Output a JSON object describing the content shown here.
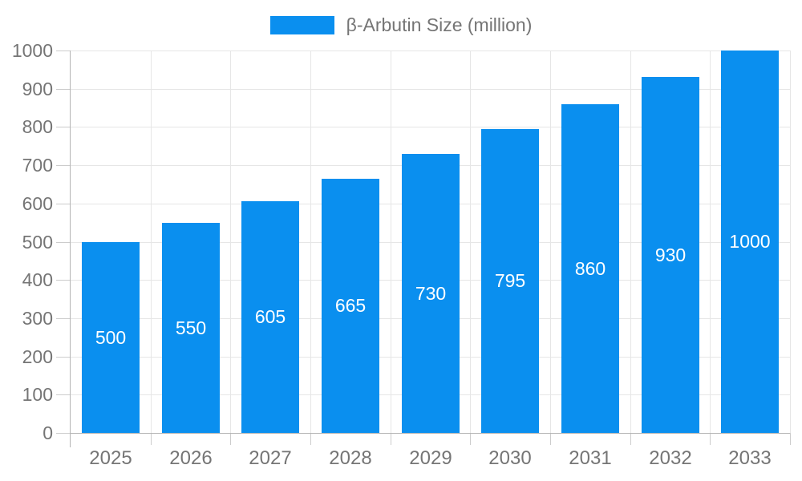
{
  "legend": {
    "label": "β-Arbutin Size (million)"
  },
  "chart_data": {
    "type": "bar",
    "title": "",
    "series_name": "β-Arbutin Size (million)",
    "categories": [
      "2025",
      "2026",
      "2027",
      "2028",
      "2029",
      "2030",
      "2031",
      "2032",
      "2033"
    ],
    "values": [
      500,
      550,
      605,
      665,
      730,
      795,
      860,
      930,
      1000
    ],
    "xlabel": "",
    "ylabel": "",
    "ylim": [
      0,
      1000
    ],
    "ytick_step": 100,
    "yticks": [
      0,
      100,
      200,
      300,
      400,
      500,
      600,
      700,
      800,
      900,
      1000
    ],
    "grid": true,
    "legend_position": "top",
    "value_labels": "centered-inside-bars"
  },
  "colors": {
    "bar": "#0a8fef",
    "value_label": "#ffffff",
    "grid": "#e6e6e6",
    "tick": "#cccccc",
    "axis": "#b3b3b3",
    "text": "#757575",
    "background": "#ffffff"
  }
}
